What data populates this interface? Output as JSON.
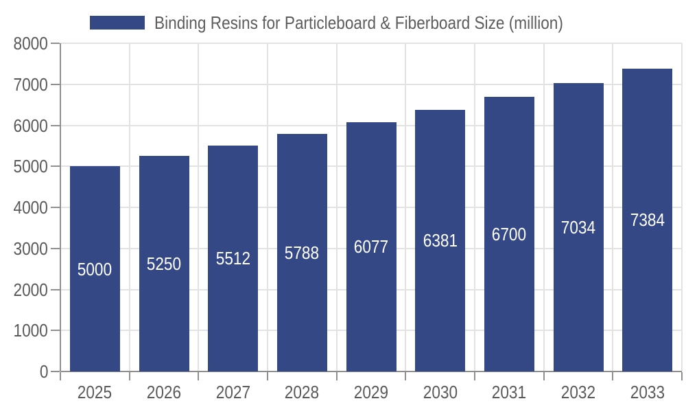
{
  "chart_data": {
    "type": "bar",
    "title": "Binding Resins for Particleboard & Fiberboard Size (million)",
    "legend": {
      "label": "Binding Resins for Particleboard & Fiberboard Size (million)",
      "position": "top"
    },
    "categories": [
      "2025",
      "2026",
      "2027",
      "2028",
      "2029",
      "2030",
      "2031",
      "2032",
      "2033"
    ],
    "series": [
      {
        "name": "Binding Resins for Particleboard & Fiberboard Size (million)",
        "values": [
          5000,
          5250,
          5512,
          5788,
          6077,
          6381,
          6700,
          7034,
          7384
        ]
      }
    ],
    "xlabel": "",
    "ylabel": "",
    "ylim": [
      0,
      8000
    ],
    "y_ticks": [
      0,
      1000,
      2000,
      3000,
      4000,
      5000,
      6000,
      7000,
      8000
    ],
    "y_tick_labels": [
      "0",
      "1000",
      "2000",
      "3000",
      "4000",
      "5000",
      "6000",
      "7000",
      "8000"
    ],
    "grid": true,
    "value_labels_position": "inside-center",
    "colors": {
      "bar": "#344886",
      "value_label": "#ffffff",
      "axis_label": "#595959",
      "legend_text": "#5c5c5c",
      "gridline": "#e2e2e2",
      "axis_line": "#8f8f8f",
      "background": "#ffffff"
    }
  }
}
